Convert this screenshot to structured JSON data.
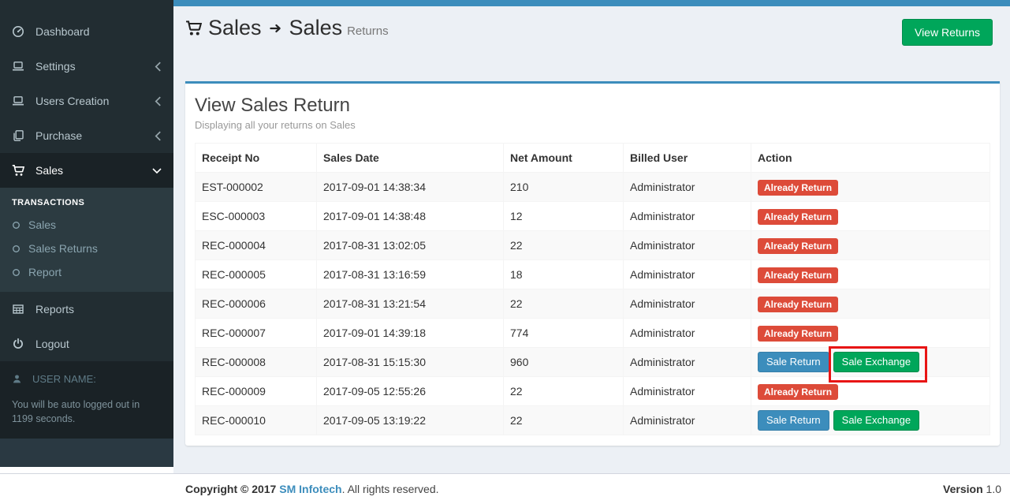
{
  "colors": {
    "accent_blue": "#3c8dbc",
    "success_green": "#00a65a",
    "danger_red": "#dd4b39",
    "annotation_red": "#e81515",
    "sidebar_bg": "#222d32",
    "submenu_bg": "#2c3b41",
    "content_bg": "#ecf0f5"
  },
  "sidebar": {
    "items": [
      {
        "label": "Dashboard"
      },
      {
        "label": "Settings"
      },
      {
        "label": "Users Creation"
      },
      {
        "label": "Purchase"
      },
      {
        "label": "Sales"
      },
      {
        "label": "Reports"
      },
      {
        "label": "Logout"
      }
    ],
    "transactions": {
      "header": "TRANSACTIONS",
      "items": [
        "Sales",
        "Sales Returns",
        "Report"
      ]
    },
    "user_panel": {
      "label": "USER NAME:",
      "auto_logout_text": "You will be auto logged out in 1199 seconds."
    }
  },
  "page_header": {
    "section": "Sales",
    "page": "Sales",
    "page_suffix": "Returns",
    "view_returns_button": "View Returns"
  },
  "panel": {
    "title": "View Sales Return",
    "subtitle": "Displaying all your returns on Sales"
  },
  "table": {
    "columns": [
      "Receipt No",
      "Sales Date",
      "Net Amount",
      "Billed User",
      "Action"
    ],
    "rows": [
      {
        "receipt_no": "EST-000002",
        "sales_date": "2017-09-01 14:38:34",
        "net_amount": "210",
        "billed_user": "Administrator",
        "actions": [
          {
            "label": "Already Return",
            "type": "label"
          }
        ]
      },
      {
        "receipt_no": "ESC-000003",
        "sales_date": "2017-09-01 14:38:48",
        "net_amount": "12",
        "billed_user": "Administrator",
        "actions": [
          {
            "label": "Already Return",
            "type": "label"
          }
        ]
      },
      {
        "receipt_no": "REC-000004",
        "sales_date": "2017-08-31 13:02:05",
        "net_amount": "22",
        "billed_user": "Administrator",
        "actions": [
          {
            "label": "Already Return",
            "type": "label"
          }
        ]
      },
      {
        "receipt_no": "REC-000005",
        "sales_date": "2017-08-31 13:16:59",
        "net_amount": "18",
        "billed_user": "Administrator",
        "actions": [
          {
            "label": "Already Return",
            "type": "label"
          }
        ]
      },
      {
        "receipt_no": "REC-000006",
        "sales_date": "2017-08-31 13:21:54",
        "net_amount": "22",
        "billed_user": "Administrator",
        "actions": [
          {
            "label": "Already Return",
            "type": "label"
          }
        ]
      },
      {
        "receipt_no": "REC-000007",
        "sales_date": "2017-09-01 14:39:18",
        "net_amount": "774",
        "billed_user": "Administrator",
        "actions": [
          {
            "label": "Already Return",
            "type": "label"
          }
        ]
      },
      {
        "receipt_no": "REC-000008",
        "sales_date": "2017-08-31 15:15:30",
        "net_amount": "960",
        "billed_user": "Administrator",
        "actions": [
          {
            "label": "Sale Return",
            "type": "primary"
          },
          {
            "label": "Sale Exchange",
            "type": "success",
            "highlighted": true
          }
        ]
      },
      {
        "receipt_no": "REC-000009",
        "sales_date": "2017-09-05 12:55:26",
        "net_amount": "22",
        "billed_user": "Administrator",
        "actions": [
          {
            "label": "Already Return",
            "type": "label"
          }
        ]
      },
      {
        "receipt_no": "REC-000010",
        "sales_date": "2017-09-05 13:19:22",
        "net_amount": "22",
        "billed_user": "Administrator",
        "actions": [
          {
            "label": "Sale Return",
            "type": "primary"
          },
          {
            "label": "Sale Exchange",
            "type": "success"
          }
        ]
      }
    ]
  },
  "footer": {
    "copyright_prefix": "Copyright © 2017",
    "company": "SM Infotech",
    "copyright_suffix": ". All rights reserved.",
    "version_label": "Version",
    "version_value": "1.0"
  }
}
